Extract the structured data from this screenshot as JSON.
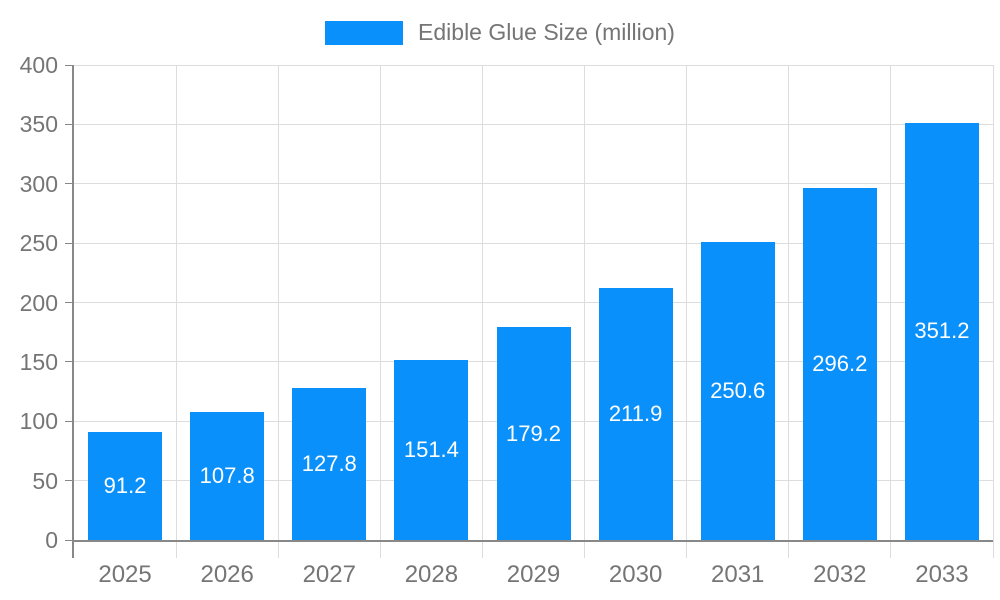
{
  "chart_data": {
    "type": "bar",
    "title": "Edible Glue Size (million)",
    "legend": "Edible Glue Size (million)",
    "categories": [
      "2025",
      "2026",
      "2027",
      "2028",
      "2029",
      "2030",
      "2031",
      "2032",
      "2033"
    ],
    "values": [
      91.2,
      107.8,
      127.8,
      151.4,
      179.2,
      211.9,
      250.6,
      296.2,
      351.2
    ],
    "xlabel": "",
    "ylabel": "",
    "ylim": [
      0,
      400
    ],
    "ytick_step": 50,
    "grid": true,
    "legend_position": "top-center",
    "bar_color": "#0a90fa",
    "bar_label_color": "#ffffff"
  },
  "style": {
    "axis_color": "#888888",
    "grid_color": "#dddddd",
    "text_color": "#757575",
    "background": "#ffffff"
  }
}
